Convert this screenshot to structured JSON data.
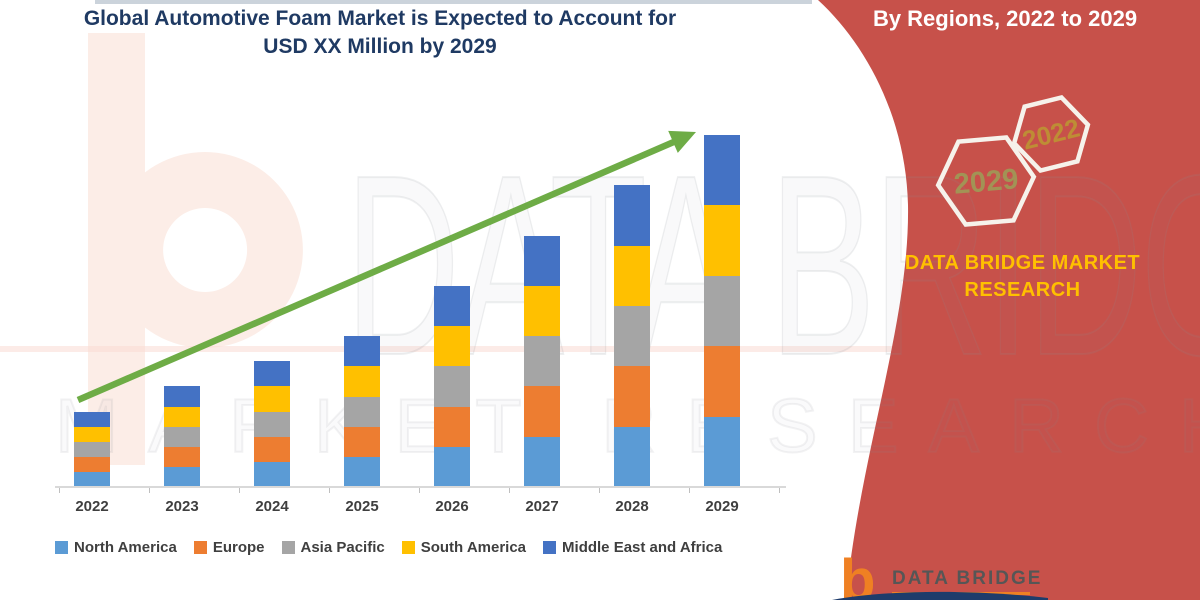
{
  "title": {
    "line1": "Global Automotive Foam Market is Expected to Account for",
    "line2": "USD XX Million by 2029",
    "color": "#1F3A63"
  },
  "banner": {
    "bg_color": "#C7514A",
    "heading": "By Regions, 2022 to 2029",
    "hexagon_small": {
      "label": "2022",
      "text_color": "#BE8D35"
    },
    "hexagon_large": {
      "label": "2029",
      "text_color": "#A29355"
    },
    "brand_text": "DATA BRIDGE MARKET RESEARCH",
    "brand_color": "#FFC000"
  },
  "watermark": {
    "line1": "DATA BRIDGE",
    "line2": "MARKET RESEARCH"
  },
  "footer_logo": {
    "b_glyph": "b",
    "b_color": "#EF8023",
    "name": "DATA BRIDGE",
    "name_color": "#565656"
  },
  "chart_data": {
    "type": "bar",
    "stacked": true,
    "title": "Global Automotive Foam Market is Expected to Account for USD XX Million by 2029",
    "xlabel": "",
    "ylabel": "",
    "grid": false,
    "y_axis_shown": false,
    "legend_position": "bottom",
    "units": "USD XX Million (values unlabeled, relative estimate)",
    "categories": [
      "2022",
      "2023",
      "2024",
      "2025",
      "2026",
      "2027",
      "2028",
      "2029"
    ],
    "series": [
      {
        "name": "North America",
        "color": "#5B9BD5",
        "values": [
          15,
          20,
          25,
          30,
          40,
          50,
          60,
          70
        ]
      },
      {
        "name": "Europe",
        "color": "#ED7D31",
        "values": [
          15,
          20,
          25,
          30,
          40,
          50,
          60,
          70
        ]
      },
      {
        "name": "Asia Pacific",
        "color": "#A5A5A5",
        "values": [
          15,
          20,
          25,
          30,
          40,
          50,
          60,
          70
        ]
      },
      {
        "name": "South America",
        "color": "#FFC000",
        "values": [
          15,
          20,
          25,
          30,
          40,
          50,
          60,
          70
        ]
      },
      {
        "name": "Middle East and Africa",
        "color": "#4472C4",
        "values": [
          15,
          20,
          25,
          30,
          40,
          50,
          60,
          70
        ]
      }
    ],
    "totals": [
      75,
      100,
      125,
      150,
      200,
      250,
      300,
      350
    ],
    "ylim": [
      0,
      350
    ],
    "annotations": [
      "green upward trend arrow from 2022 bar to 2029 bar top"
    ],
    "trend_arrow_color": "#6EAC46"
  }
}
